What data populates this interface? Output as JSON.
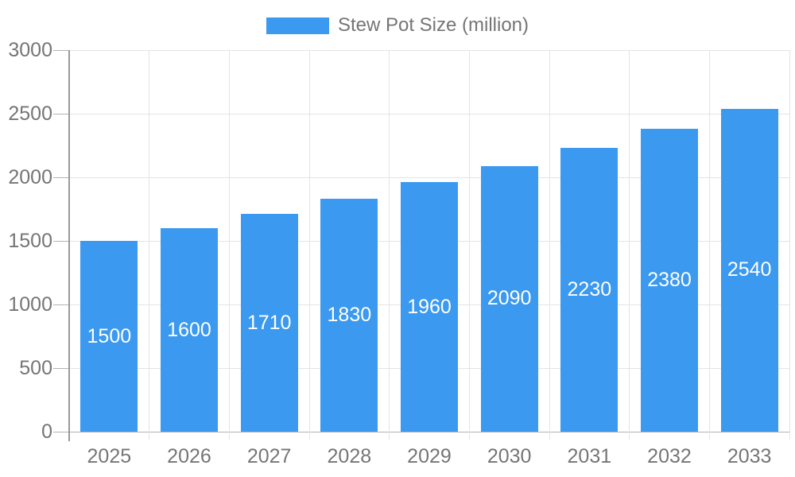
{
  "legend": {
    "label": "Stew Pot Size (million)"
  },
  "colors": {
    "bar": "#3B99EF",
    "axis_line": "#999999",
    "gridline": "#e4e4e4",
    "baseline": "#b3b3b3",
    "label_text": "#757575",
    "bar_label_text": "#ffffff",
    "background": "#ffffff"
  },
  "chart_data": {
    "type": "bar",
    "title": "Stew Pot Size (million)",
    "categories": [
      "2025",
      "2026",
      "2027",
      "2028",
      "2029",
      "2030",
      "2031",
      "2032",
      "2033"
    ],
    "series": [
      {
        "name": "Stew Pot Size (million)",
        "values": [
          1500,
          1600,
          1710,
          1830,
          1960,
          2090,
          2230,
          2380,
          2540
        ]
      }
    ],
    "xlabel": "",
    "ylabel": "",
    "ylim": [
      0,
      3000
    ],
    "yticks": [
      0,
      500,
      1000,
      1500,
      2000,
      2500,
      3000
    ],
    "grid": true,
    "legend_position": "top-center",
    "data_labels": "inside-center-white"
  }
}
